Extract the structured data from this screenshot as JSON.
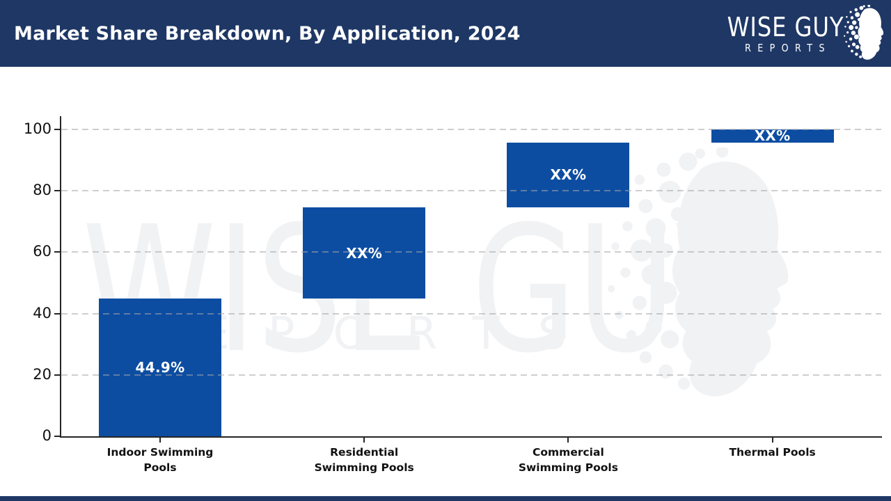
{
  "header": {
    "title": "Market Share Breakdown, By Application, 2024",
    "logo_line1": "WISE GUY",
    "logo_line2": "REPORTS"
  },
  "watermark": {
    "line1": "WISE GUY",
    "line2": "REPORTS"
  },
  "colors": {
    "header_navy": "#1e3765",
    "bar_blue": "#0c4da2",
    "grid_gray": "#cfcfcf",
    "watermark_gray": "#f1f2f4",
    "axis_black": "#262626",
    "label_white": "#ffffff"
  },
  "chart_data": {
    "type": "bar",
    "subtype": "floating-waterfall",
    "title": "Market Share Breakdown, By Application, 2024",
    "categories": [
      "Indoor Swimming Pools",
      "Residential Swimming Pools",
      "Commercial Swimming Pools",
      "Thermal Pools"
    ],
    "categories_lines": [
      [
        "Indoor Swimming",
        "Pools"
      ],
      [
        "Residential",
        "Swimming Pools"
      ],
      [
        "Commercial",
        "Swimming Pools"
      ],
      [
        "Thermal Pools"
      ]
    ],
    "series": [
      {
        "name": "Market Share %",
        "segments": [
          {
            "category": "Indoor Swimming Pools",
            "start": 0,
            "end": 44.9,
            "label": "44.9%"
          },
          {
            "category": "Residential Swimming Pools",
            "start": 44.9,
            "end": 74.6,
            "label": "XX%"
          },
          {
            "category": "Commercial Swimming Pools",
            "start": 74.6,
            "end": 95.7,
            "label": "XX%"
          },
          {
            "category": "Thermal Pools",
            "start": 95.7,
            "end": 100,
            "label": "XX%"
          }
        ]
      }
    ],
    "ylim": [
      0,
      100
    ],
    "yticks": [
      0,
      20,
      40,
      60,
      80,
      100
    ],
    "xlabel": "",
    "ylabel": "",
    "grid": "horizontal-dashed",
    "legend": "none"
  }
}
